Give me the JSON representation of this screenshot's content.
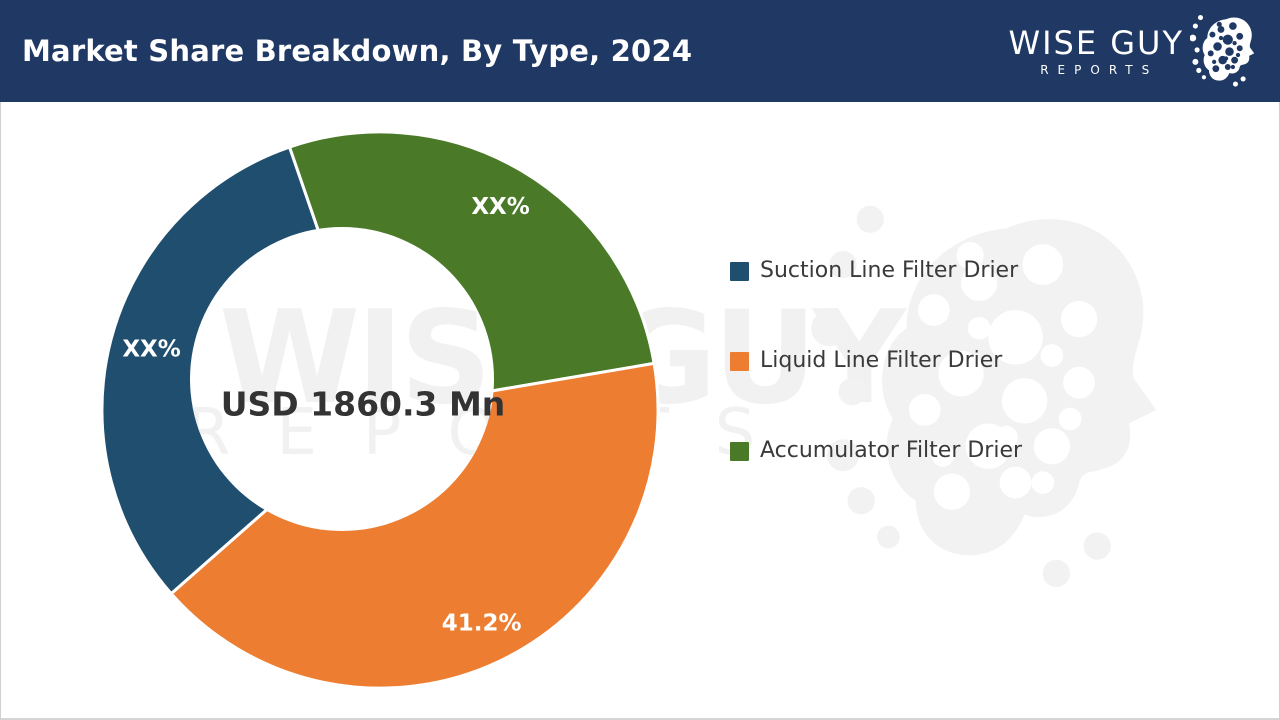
{
  "header": {
    "background_color": "#1f3864",
    "title": "Market Share Breakdown, By Type, 2024",
    "logo": {
      "line1": "WISE GUY",
      "line2": "REPORTS"
    }
  },
  "chart_data": {
    "type": "pie",
    "donut": true,
    "title": "Market Share Breakdown, By Type, 2024",
    "center_label": "USD 1860.3 Mn",
    "start_angle_deg": -19,
    "slices": [
      {
        "name": "Accumulator Filter Drier",
        "label": "XX%",
        "value_pct": 27.6,
        "color": "#4a7a28"
      },
      {
        "name": "Liquid Line Filter Drier",
        "label": "41.2%",
        "value_pct": 41.2,
        "color": "#ed7d31"
      },
      {
        "name": "Suction Line Filter Drier",
        "label": "XX%",
        "value_pct": 31.2,
        "color": "#1f4e6e"
      }
    ],
    "legend": {
      "position": "right",
      "items": [
        {
          "label": "Suction Line Filter Drier",
          "color": "#1f4e6e"
        },
        {
          "label": "Liquid Line Filter Drier",
          "color": "#ed7d31"
        },
        {
          "label": "Accumulator Filter Drier",
          "color": "#4a7a28"
        }
      ]
    }
  },
  "watermark": {
    "line1": "WISE GUY",
    "line2": "REPORTS"
  }
}
